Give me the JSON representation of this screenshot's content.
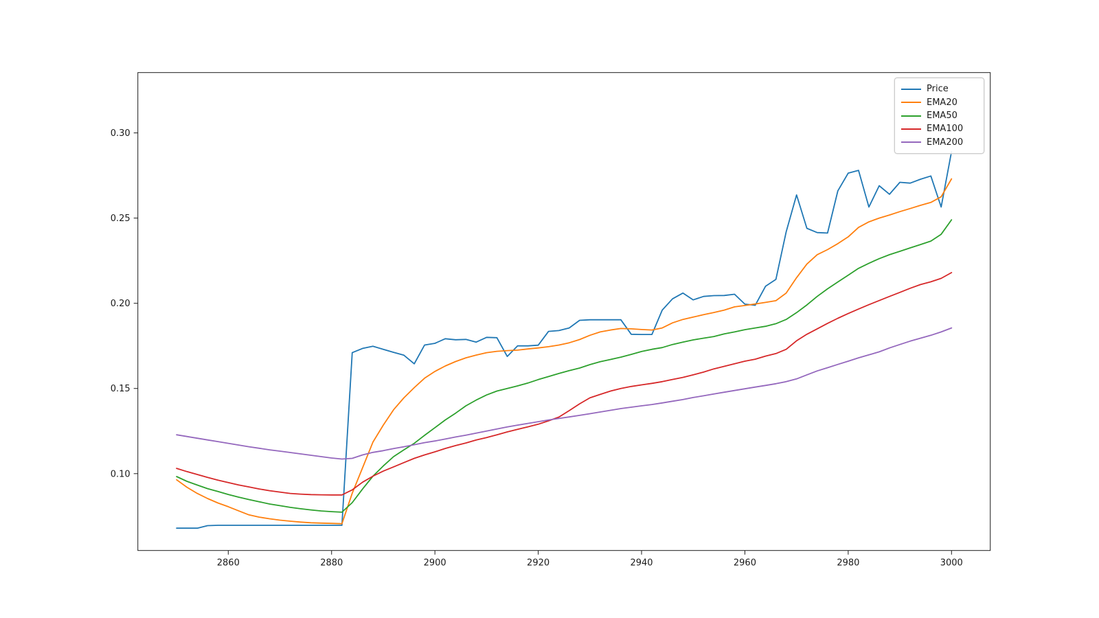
{
  "figure": {
    "background_color": "#ffffff",
    "plot_background_color": "#ffffff",
    "spine_color": "#1a1a1a",
    "tick_label_color": "#1a1a1a"
  },
  "legend": {
    "location": "upper right",
    "entries": [
      "Price",
      "EMA20",
      "EMA50",
      "EMA100",
      "EMA200"
    ]
  },
  "chart_data": {
    "type": "line",
    "title": "",
    "xlabel": "",
    "ylabel": "",
    "grid": false,
    "legend_position": "upper right",
    "xlim": [
      2842.5,
      3007.5
    ],
    "ylim": [
      0.0549,
      0.3354
    ],
    "x_tick_values": [
      2860,
      2880,
      2900,
      2920,
      2940,
      2960,
      2980,
      3000
    ],
    "x_tick_labels": [
      "2860",
      "2880",
      "2900",
      "2920",
      "2940",
      "2960",
      "2980",
      "3000"
    ],
    "y_tick_values": [
      0.1,
      0.15,
      0.2,
      0.25,
      0.3
    ],
    "y_tick_labels": [
      "0.10",
      "0.15",
      "0.20",
      "0.25",
      "0.30"
    ],
    "x": [
      2850,
      2852,
      2854,
      2856,
      2858,
      2860,
      2862,
      2864,
      2866,
      2868,
      2870,
      2872,
      2874,
      2876,
      2878,
      2880,
      2882,
      2884,
      2886,
      2888,
      2890,
      2892,
      2894,
      2896,
      2898,
      2900,
      2902,
      2904,
      2906,
      2908,
      2910,
      2912,
      2914,
      2916,
      2918,
      2920,
      2922,
      2924,
      2926,
      2928,
      2930,
      2932,
      2934,
      2936,
      2938,
      2940,
      2942,
      2944,
      2946,
      2948,
      2950,
      2952,
      2954,
      2956,
      2958,
      2960,
      2962,
      2964,
      2966,
      2968,
      2970,
      2972,
      2974,
      2976,
      2978,
      2980,
      2982,
      2984,
      2986,
      2988,
      2990,
      2992,
      2994,
      2996,
      2998,
      3000
    ],
    "series": [
      {
        "name": "Price",
        "color": "#1f77b4",
        "values": [
          0.068,
          0.068,
          0.068,
          0.0695,
          0.0697,
          0.0697,
          0.0697,
          0.0697,
          0.0697,
          0.0697,
          0.0697,
          0.0697,
          0.0697,
          0.0697,
          0.0697,
          0.0697,
          0.0697,
          0.171,
          0.1735,
          0.1748,
          0.173,
          0.1712,
          0.1695,
          0.1645,
          0.1755,
          0.1765,
          0.1792,
          0.1786,
          0.1788,
          0.1772,
          0.18,
          0.1798,
          0.1688,
          0.175,
          0.175,
          0.1754,
          0.1835,
          0.184,
          0.1855,
          0.19,
          0.1903,
          0.1903,
          0.1903,
          0.1903,
          0.1818,
          0.1817,
          0.1817,
          0.196,
          0.2026,
          0.206,
          0.202,
          0.204,
          0.2045,
          0.2046,
          0.2053,
          0.1995,
          0.1988,
          0.21,
          0.214,
          0.242,
          0.2636,
          0.244,
          0.2415,
          0.2412,
          0.266,
          0.2764,
          0.278,
          0.2565,
          0.269,
          0.264,
          0.271,
          0.2705,
          0.2728,
          0.2747,
          0.2565,
          0.289
        ]
      },
      {
        "name": "EMA20",
        "color": "#ff7f0e",
        "values": [
          0.0964,
          0.092,
          0.0884,
          0.0854,
          0.0828,
          0.0806,
          0.0782,
          0.0758,
          0.0745,
          0.0735,
          0.0727,
          0.0721,
          0.0716,
          0.0712,
          0.071,
          0.0708,
          0.0706,
          0.0885,
          0.1035,
          0.1185,
          0.1285,
          0.1375,
          0.1445,
          0.1505,
          0.156,
          0.16,
          0.1632,
          0.1658,
          0.168,
          0.1696,
          0.171,
          0.1718,
          0.1722,
          0.1725,
          0.1732,
          0.1738,
          0.1745,
          0.1755,
          0.1768,
          0.1787,
          0.1812,
          0.1832,
          0.1843,
          0.1852,
          0.185,
          0.1846,
          0.1843,
          0.1855,
          0.1885,
          0.1905,
          0.1919,
          0.1933,
          0.1946,
          0.196,
          0.1979,
          0.1987,
          0.1996,
          0.2005,
          0.2015,
          0.206,
          0.215,
          0.223,
          0.2285,
          0.2315,
          0.235,
          0.239,
          0.2445,
          0.2478,
          0.25,
          0.2518,
          0.2538,
          0.2556,
          0.2575,
          0.2592,
          0.2625,
          0.273
        ]
      },
      {
        "name": "EMA50",
        "color": "#2ca02c",
        "values": [
          0.0983,
          0.0955,
          0.0933,
          0.0912,
          0.0895,
          0.0878,
          0.0862,
          0.0848,
          0.0835,
          0.0822,
          0.0812,
          0.0802,
          0.0794,
          0.0787,
          0.0781,
          0.0777,
          0.0774,
          0.083,
          0.091,
          0.0985,
          0.1045,
          0.11,
          0.114,
          0.1178,
          0.1225,
          0.127,
          0.1315,
          0.1355,
          0.1398,
          0.1432,
          0.1462,
          0.1485,
          0.15,
          0.1515,
          0.1532,
          0.1552,
          0.157,
          0.1588,
          0.1605,
          0.162,
          0.164,
          0.1657,
          0.167,
          0.1684,
          0.17,
          0.1717,
          0.173,
          0.174,
          0.1758,
          0.1772,
          0.1785,
          0.1795,
          0.1805,
          0.182,
          0.1832,
          0.1845,
          0.1855,
          0.1865,
          0.188,
          0.1905,
          0.1945,
          0.199,
          0.204,
          0.2085,
          0.2125,
          0.2165,
          0.2205,
          0.2235,
          0.2262,
          0.2285,
          0.2305,
          0.2325,
          0.2345,
          0.2365,
          0.2405,
          0.249
        ]
      },
      {
        "name": "EMA100",
        "color": "#d62728",
        "values": [
          0.1031,
          0.1012,
          0.0995,
          0.0978,
          0.0962,
          0.0948,
          0.0934,
          0.0922,
          0.091,
          0.09,
          0.0892,
          0.0884,
          0.088,
          0.0877,
          0.0876,
          0.0875,
          0.0875,
          0.0905,
          0.095,
          0.0985,
          0.1015,
          0.104,
          0.1065,
          0.109,
          0.111,
          0.1128,
          0.1148,
          0.1165,
          0.118,
          0.1198,
          0.1212,
          0.1228,
          0.1245,
          0.126,
          0.1275,
          0.129,
          0.131,
          0.1332,
          0.137,
          0.141,
          0.1445,
          0.1465,
          0.1485,
          0.15,
          0.1512,
          0.1521,
          0.153,
          0.154,
          0.1553,
          0.1565,
          0.158,
          0.1596,
          0.1615,
          0.163,
          0.1645,
          0.166,
          0.1672,
          0.169,
          0.1705,
          0.173,
          0.178,
          0.1818,
          0.185,
          0.1882,
          0.1912,
          0.194,
          0.1966,
          0.1992,
          0.2016,
          0.204,
          0.2064,
          0.2088,
          0.211,
          0.2126,
          0.2146,
          0.218
        ]
      },
      {
        "name": "EMA200",
        "color": "#9467bd",
        "values": [
          0.1228,
          0.1218,
          0.1208,
          0.1198,
          0.1188,
          0.1178,
          0.1168,
          0.1158,
          0.1149,
          0.114,
          0.1132,
          0.1124,
          0.1116,
          0.1108,
          0.11,
          0.1092,
          0.1086,
          0.109,
          0.111,
          0.1125,
          0.1135,
          0.1147,
          0.1158,
          0.117,
          0.1182,
          0.1192,
          0.1203,
          0.1215,
          0.1226,
          0.1238,
          0.125,
          0.1262,
          0.1274,
          0.1285,
          0.1295,
          0.1305,
          0.1315,
          0.1324,
          0.1333,
          0.1342,
          0.1352,
          0.1362,
          0.1372,
          0.1382,
          0.139,
          0.1398,
          0.1406,
          0.1415,
          0.1425,
          0.1435,
          0.1447,
          0.1457,
          0.1468,
          0.1478,
          0.1488,
          0.1498,
          0.1508,
          0.1518,
          0.1528,
          0.154,
          0.1556,
          0.158,
          0.1603,
          0.1622,
          0.1641,
          0.166,
          0.168,
          0.1697,
          0.1715,
          0.1738,
          0.1758,
          0.1778,
          0.1795,
          0.1812,
          0.1832,
          0.1855
        ]
      }
    ]
  }
}
